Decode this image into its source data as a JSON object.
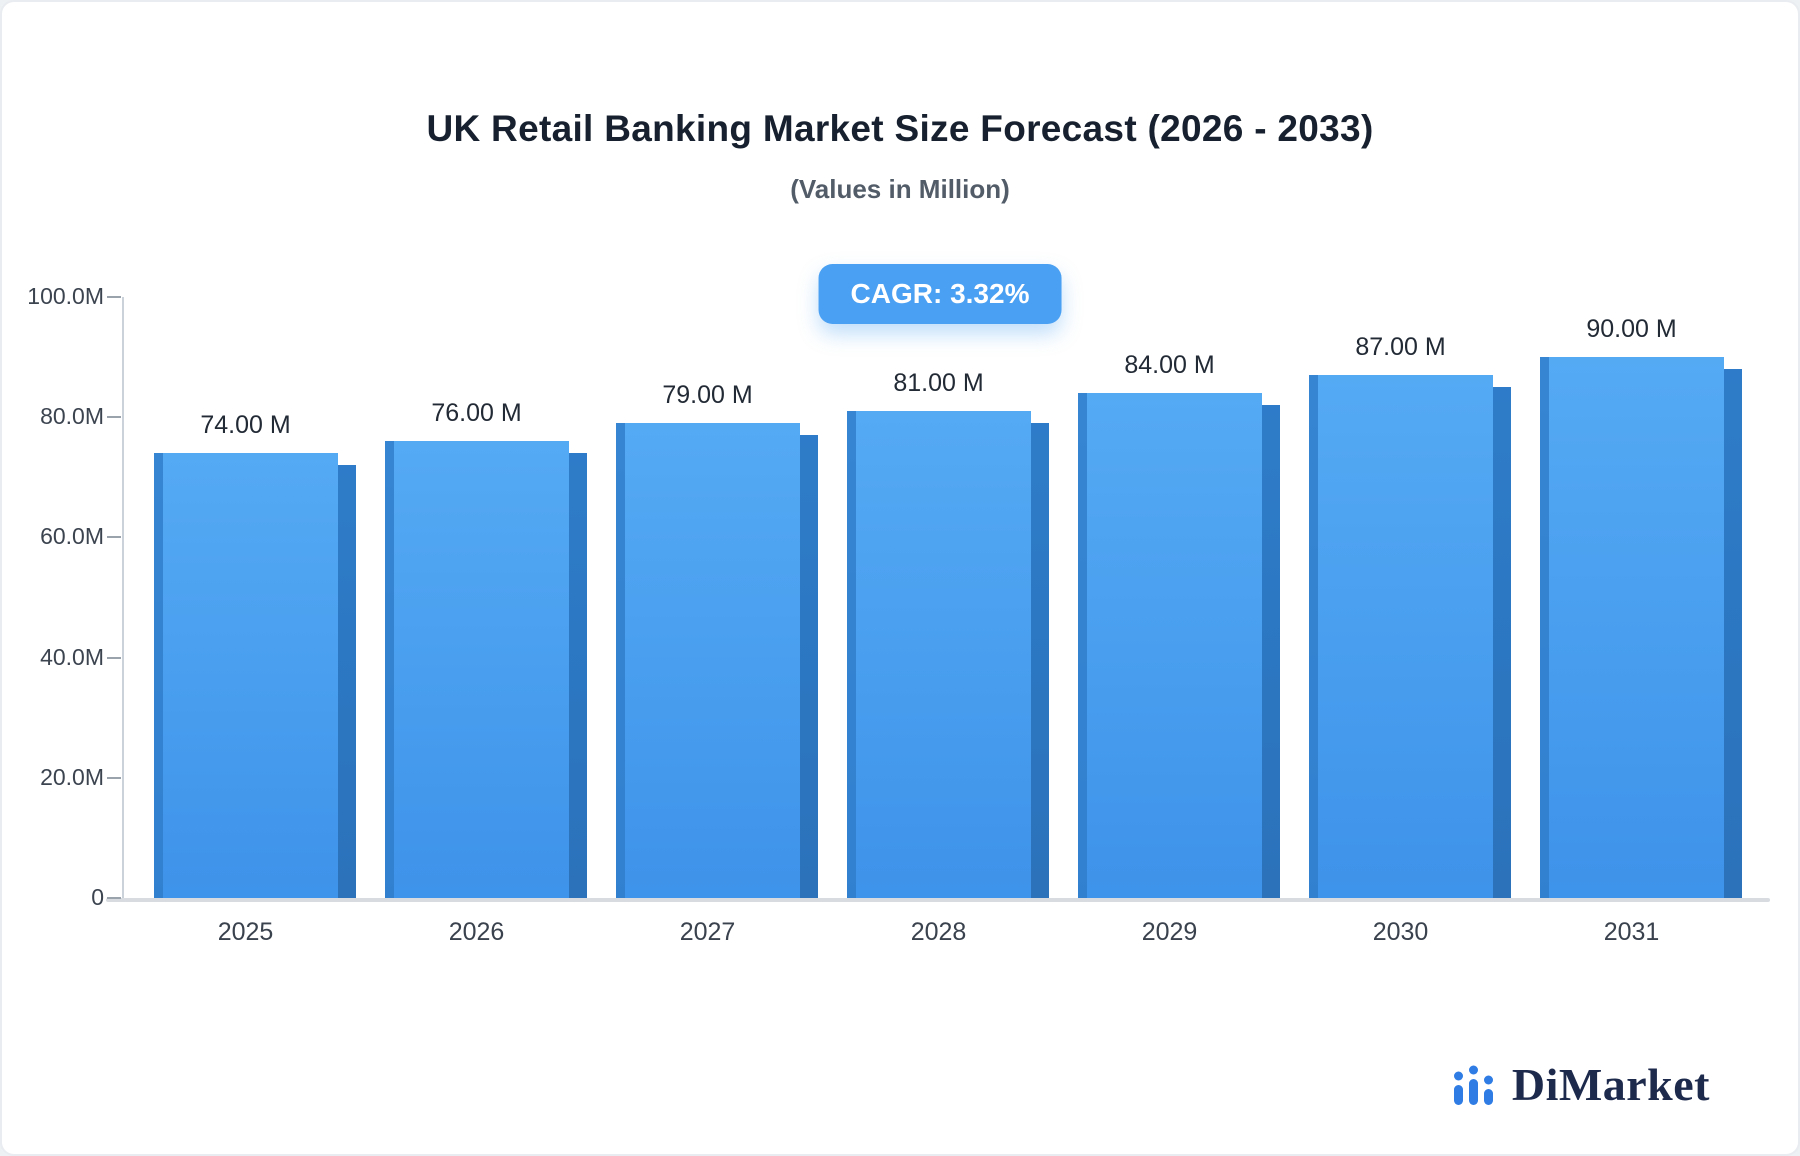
{
  "header": {
    "title": "UK Retail Banking Market Size Forecast (2026 - 2033)",
    "subtitle": "(Values in Million)"
  },
  "cagr_badge": {
    "label": "CAGR: 3.32%"
  },
  "chart_data": {
    "type": "bar",
    "title": "UK Retail Banking Market Size Forecast (2026 - 2033)",
    "subtitle": "(Values in Million)",
    "categories": [
      "2025",
      "2026",
      "2027",
      "2028",
      "2029",
      "2030",
      "2031"
    ],
    "values": [
      74,
      76,
      79,
      81,
      84,
      87,
      90
    ],
    "value_labels": [
      "74.00 M",
      "76.00 M",
      "79.00 M",
      "81.00 M",
      "84.00 M",
      "87.00 M",
      "90.00 M"
    ],
    "unit": "Million",
    "xlabel": "",
    "ylabel": "",
    "ylim": [
      0,
      100
    ],
    "ytick_values": [
      0,
      20,
      40,
      60,
      80,
      100
    ],
    "ytick_labels": [
      "0",
      "20.0M",
      "40.0M",
      "60.0M",
      "80.0M",
      "100.0M"
    ],
    "grid": false,
    "legend": null,
    "annotations": [
      "CAGR: 3.32%"
    ],
    "colors": {
      "bar_top": "#55AAF4",
      "bar_bottom": "#3E93EA",
      "bar_side": "#2E7CC9",
      "badge": "#4AA0F2"
    }
  },
  "branding": {
    "logo_text": "DiMarket",
    "logo_icon": "bar-chart-icon",
    "logo_text_color": "#1D2A4C",
    "logo_icon_color": "#2E7CE4"
  }
}
